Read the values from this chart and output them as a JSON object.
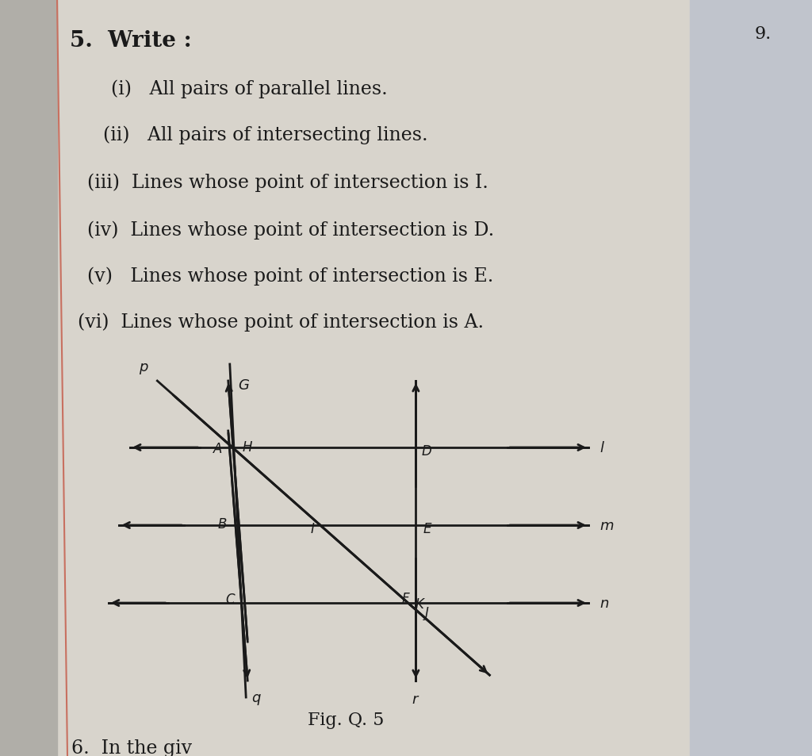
{
  "bg_color": "#d8d4cc",
  "text_color": "#1a1a1a",
  "line_color": "#1a1a1a",
  "title": "5.  Write :",
  "items": [
    "(i)   All pairs of parallel lines.",
    "(ii)   All pairs of intersecting lines.",
    "(iii)  Lines whose point of intersection is I.",
    "(iv)  Lines whose point of intersection is D.",
    "(v)   Lines whose point of intersection is E.",
    "(vi)  Lines whose point of intersection is A."
  ],
  "fig_label": "Fig. Q. 5",
  "left_margin_color": "#c8c4bc",
  "right_panel_color": "#b0b8c8"
}
